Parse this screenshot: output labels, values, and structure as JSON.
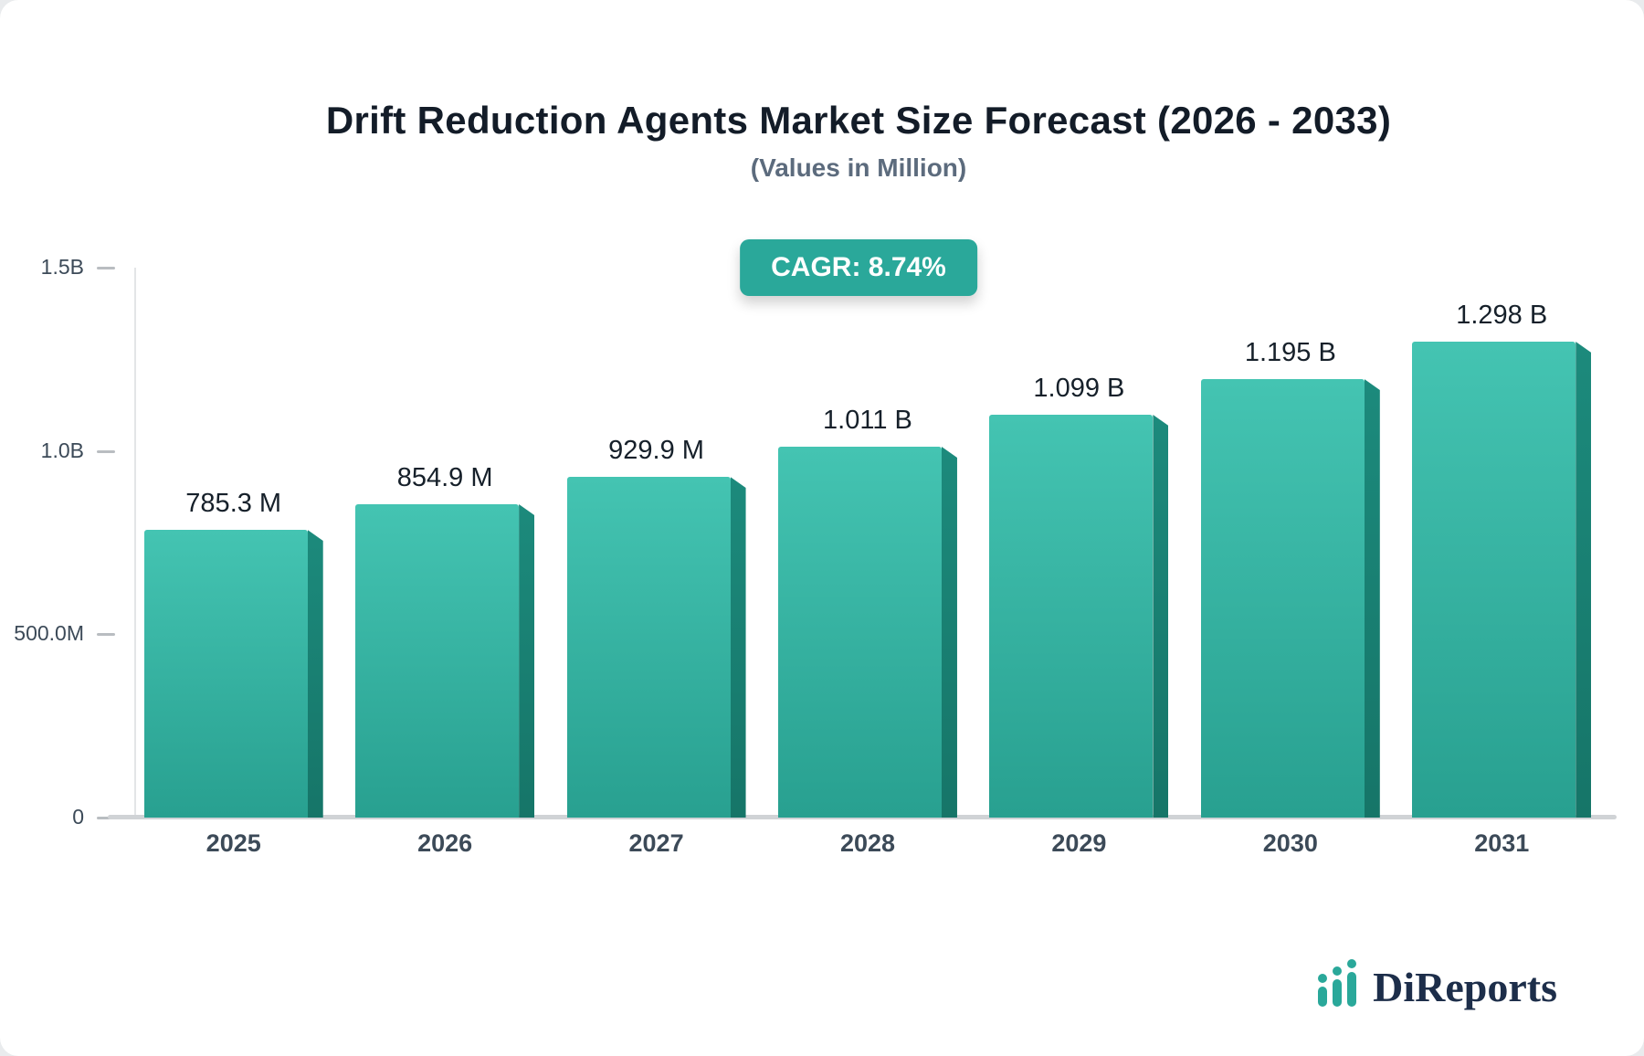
{
  "title": "Drift Reduction Agents Market Size Forecast (2026 - 2033)",
  "subtitle": "(Values in Million)",
  "badge": {
    "label": "CAGR: 8.74%",
    "color": "#2aa89a"
  },
  "logo": {
    "text": "DiReports",
    "icon": "bar-chart-icon",
    "icon_color": "#2aa89a",
    "text_color": "#1d2e4a"
  },
  "chart_data": {
    "type": "bar",
    "title": "Drift Reduction Agents Market Size Forecast (2026 - 2033)",
    "subtitle": "(Values in Million)",
    "cagr": "CAGR: 8.74%",
    "categories": [
      "2025",
      "2026",
      "2027",
      "2028",
      "2029",
      "2030",
      "2031"
    ],
    "values_millions": [
      785.3,
      854.9,
      929.9,
      1011,
      1099,
      1195,
      1298
    ],
    "value_labels": [
      "785.3 M",
      "854.9 M",
      "929.9 M",
      "1.011 B",
      "1.099 B",
      "1.195 B",
      "1.298 B"
    ],
    "xlabel": "",
    "ylabel": "",
    "ylim_millions": [
      0,
      1500
    ],
    "yticks": [
      {
        "label": "1.5B",
        "value": 1500
      },
      {
        "label": "1.0B",
        "value": 1000
      },
      {
        "label": "500.0M",
        "value": 500
      },
      {
        "label": "0",
        "value": 0
      }
    ],
    "grid": false,
    "legend": "none",
    "bar_color_top": "#44c4b2",
    "bar_color_bottom": "#28a090",
    "bar_side_top": "#1c8a7c",
    "bar_side_bottom": "#167568"
  }
}
